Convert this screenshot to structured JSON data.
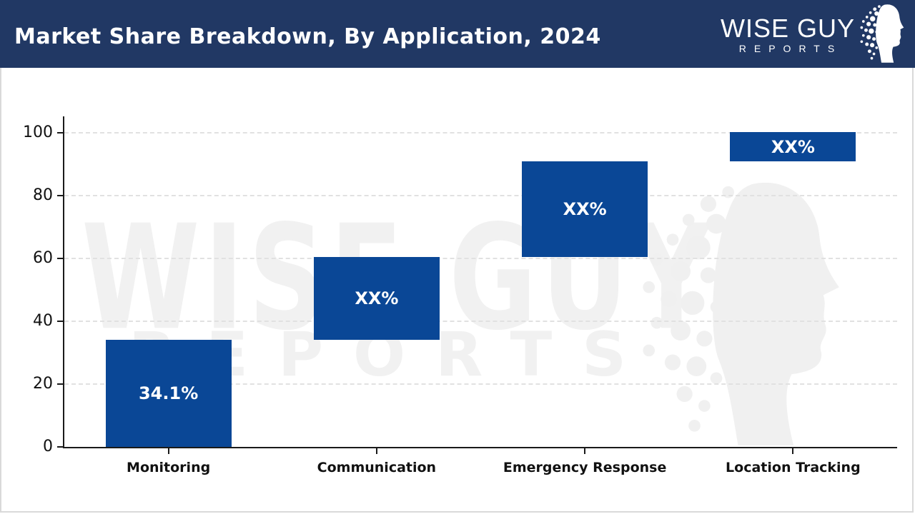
{
  "header": {
    "title": "Market Share Breakdown, By Application, 2024",
    "bg_color": "#213864",
    "logo": {
      "line1": "WISE GUY",
      "line2": "REPORTS"
    }
  },
  "watermark": {
    "line1": "WISE GUY",
    "line2": "REPORTS"
  },
  "chart_data": {
    "type": "bar",
    "subtype": "waterfall",
    "title": "Market Share Breakdown, By Application, 2024",
    "xlabel": "",
    "ylabel": "",
    "categories": [
      "Monitoring",
      "Communication",
      "Emergency Response",
      "Location Tracking"
    ],
    "segments": [
      {
        "category": "Monitoring",
        "start": 0,
        "end": 34.1,
        "label": "34.1%"
      },
      {
        "category": "Communication",
        "start": 34.1,
        "end": 60.5,
        "label": "XX%"
      },
      {
        "category": "Emergency Response",
        "start": 60.5,
        "end": 90.9,
        "label": "XX%"
      },
      {
        "category": "Location Tracking",
        "start": 90.9,
        "end": 100.2,
        "label": "XX%"
      }
    ],
    "yticks": [
      0,
      20,
      40,
      60,
      80,
      100
    ],
    "ylim": [
      0,
      105
    ],
    "grid": "horizontal-dashed",
    "legend": "none",
    "bar_color": "#0a4796",
    "bar_label_color": "#ffffff",
    "axis_color": "#1a1a1a",
    "gridline_color": "#e1e1e1"
  }
}
